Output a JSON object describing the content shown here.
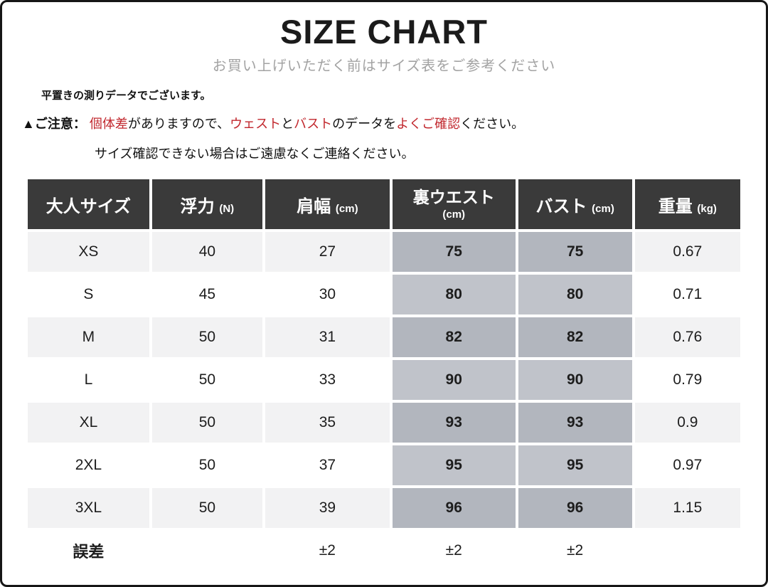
{
  "title": "SIZE CHART",
  "subtitle": "お買い上げいただく前はサイズ表をご参考ください",
  "notes": {
    "line1": "平置きの測りデータでございます。",
    "caution_segments": [
      {
        "text": "▲ご注意：  ",
        "color": "#111111",
        "bold": true
      },
      {
        "text": "個体差",
        "color": "#c1272d",
        "bold": false
      },
      {
        "text": "がありますので、",
        "color": "#111111",
        "bold": false
      },
      {
        "text": "ウェスト",
        "color": "#c1272d",
        "bold": false
      },
      {
        "text": "と",
        "color": "#111111",
        "bold": false
      },
      {
        "text": "バスト",
        "color": "#c1272d",
        "bold": false
      },
      {
        "text": "のデータを",
        "color": "#111111",
        "bold": false
      },
      {
        "text": "よくご確認",
        "color": "#c1272d",
        "bold": false
      },
      {
        "text": "ください。",
        "color": "#111111",
        "bold": false
      }
    ],
    "line3": "サイズ確認できない場合はご遠慮なくご連絡ください。"
  },
  "table": {
    "headers": [
      {
        "label": "大人サイズ",
        "unit": ""
      },
      {
        "label": "浮力",
        "unit": "(N)"
      },
      {
        "label": "肩幅",
        "unit": "(cm)"
      },
      {
        "label": "裏ウエスト",
        "unit": "(cm)"
      },
      {
        "label": "バスト",
        "unit": "(cm)"
      },
      {
        "label": "重量",
        "unit": "(kg)"
      }
    ],
    "rows": [
      {
        "size": "XS",
        "buoyancy": "40",
        "shoulder": "27",
        "waist": "75",
        "bust": "75",
        "weight": "0.67"
      },
      {
        "size": "S",
        "buoyancy": "45",
        "shoulder": "30",
        "waist": "80",
        "bust": "80",
        "weight": "0.71"
      },
      {
        "size": "M",
        "buoyancy": "50",
        "shoulder": "31",
        "waist": "82",
        "bust": "82",
        "weight": "0.76"
      },
      {
        "size": "L",
        "buoyancy": "50",
        "shoulder": "33",
        "waist": "90",
        "bust": "90",
        "weight": "0.79"
      },
      {
        "size": "XL",
        "buoyancy": "50",
        "shoulder": "35",
        "waist": "93",
        "bust": "93",
        "weight": "0.9"
      },
      {
        "size": "2XL",
        "buoyancy": "50",
        "shoulder": "37",
        "waist": "95",
        "bust": "95",
        "weight": "0.97"
      },
      {
        "size": "3XL",
        "buoyancy": "50",
        "shoulder": "39",
        "waist": "96",
        "bust": "96",
        "weight": "1.15"
      }
    ],
    "tolerance_row": {
      "label": "誤差",
      "buoyancy": "",
      "shoulder": "±2",
      "waist": "±2",
      "bust": "±2",
      "weight": ""
    }
  },
  "chart_data": {
    "type": "table",
    "title": "SIZE CHART",
    "columns": [
      "大人サイズ",
      "浮力 (N)",
      "肩幅 (cm)",
      "裏ウエスト (cm)",
      "バスト (cm)",
      "重量 (kg)"
    ],
    "rows": [
      [
        "XS",
        "40",
        "27",
        "75",
        "75",
        "0.67"
      ],
      [
        "S",
        "45",
        "30",
        "80",
        "80",
        "0.71"
      ],
      [
        "M",
        "50",
        "31",
        "82",
        "82",
        "0.76"
      ],
      [
        "L",
        "50",
        "33",
        "90",
        "90",
        "0.79"
      ],
      [
        "XL",
        "50",
        "35",
        "93",
        "93",
        "0.9"
      ],
      [
        "2XL",
        "50",
        "37",
        "95",
        "95",
        "0.97"
      ],
      [
        "3XL",
        "50",
        "39",
        "96",
        "96",
        "1.15"
      ],
      [
        "誤差",
        "",
        "±2",
        "±2",
        "±2",
        ""
      ]
    ]
  },
  "colors": {
    "accent_red": "#c1272d",
    "header_bg": "#3a3a3a",
    "header_text": "#ffffff",
    "stripe_bg": "#f2f2f3",
    "highlight_col_on_stripe": "#b2b6be",
    "highlight_col_on_white": "#c0c3ca",
    "subtitle_gray": "#a3a3a3",
    "frame_border": "#161616"
  }
}
